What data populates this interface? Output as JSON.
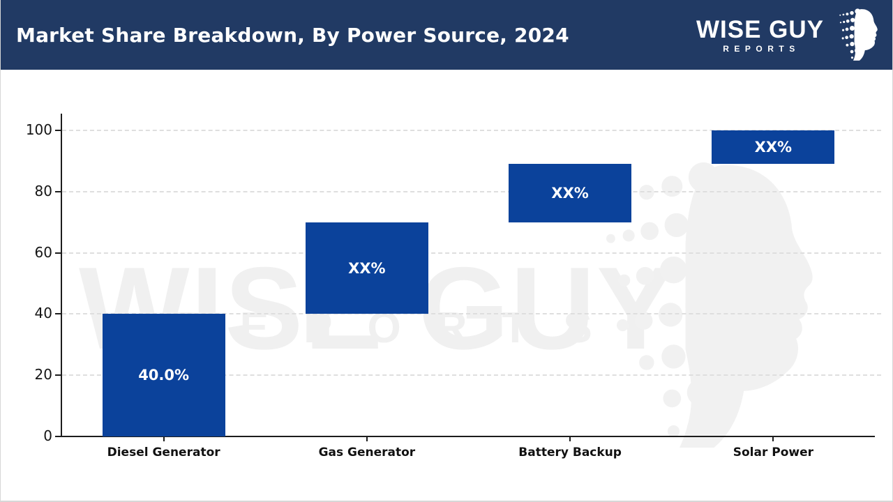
{
  "header": {
    "title": "Market Share Breakdown, By Power Source, 2024",
    "background": "#213a64",
    "logo": {
      "line1": "WISE GUY",
      "line2": "REPORTS"
    }
  },
  "watermark": {
    "line1": "WISE GUY",
    "line2": "REPORTS"
  },
  "chart_data": {
    "type": "bar",
    "subtype": "waterfall",
    "title": "Market Share Breakdown, By Power Source, 2024",
    "categories": [
      "Diesel Generator",
      "Gas Generator",
      "Battery Backup",
      "Solar Power"
    ],
    "segments": [
      {
        "category": "Diesel Generator",
        "start": 0,
        "end": 40,
        "label": "40.0%"
      },
      {
        "category": "Gas Generator",
        "start": 40,
        "end": 70,
        "label": "XX%"
      },
      {
        "category": "Battery Backup",
        "start": 70,
        "end": 89,
        "label": "XX%"
      },
      {
        "category": "Solar Power",
        "start": 89,
        "end": 100,
        "label": "XX%"
      }
    ],
    "ylim": [
      0,
      100
    ],
    "yticks": [
      0,
      20,
      40,
      60,
      80,
      100
    ],
    "xlabel": "",
    "ylabel": "",
    "bar_color": "#0b429b",
    "bar_label_color": "#ffffff",
    "grid": "horizontal-dashed",
    "legend": "none"
  }
}
